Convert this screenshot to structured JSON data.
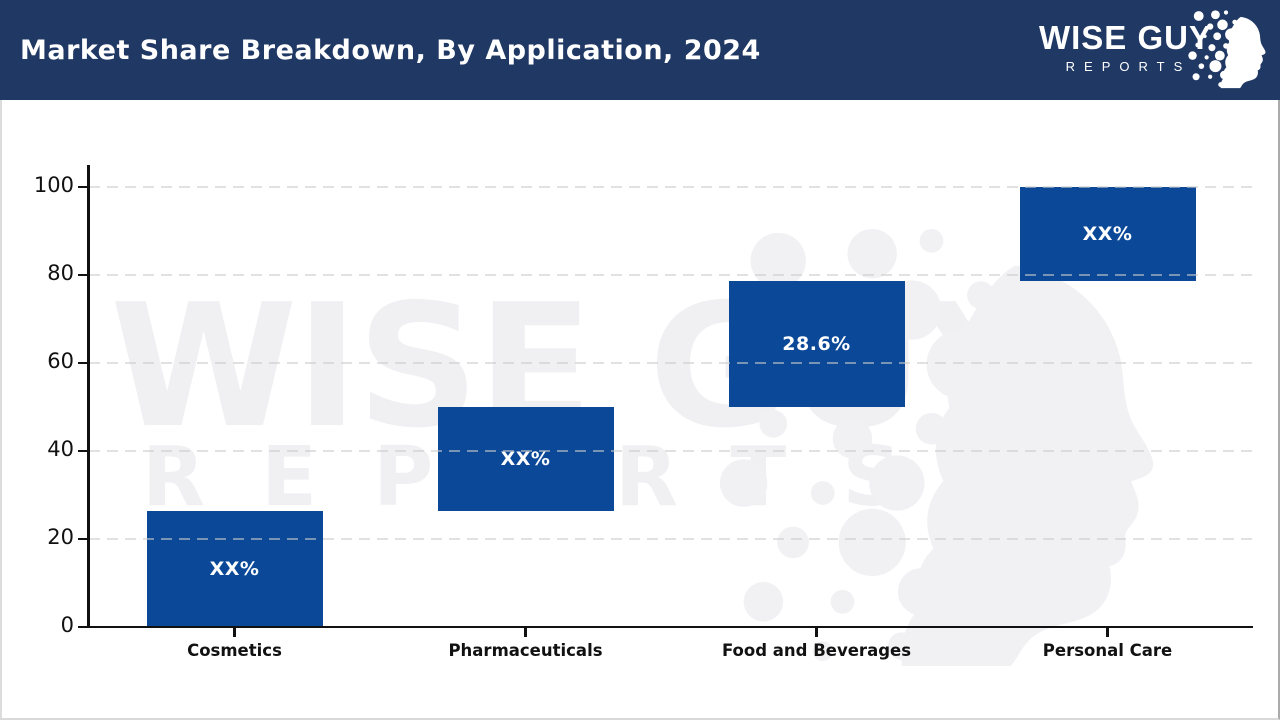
{
  "header": {
    "title": "Market Share Breakdown, By Application, 2024"
  },
  "logo": {
    "name": "WISE GUY",
    "sub": "REPORTS"
  },
  "watermark": {
    "line1": "WISE GUY",
    "line2": "REPORTS"
  },
  "chart_data": {
    "type": "bar",
    "subtype": "floating-waterfall",
    "title": "Market Share Breakdown, By Application, 2024",
    "categories": [
      "Cosmetics",
      "Pharmaceuticals",
      "Food and Beverages",
      "Personal Care"
    ],
    "series": [
      {
        "name": "Market Share (%)",
        "segments": [
          {
            "category": "Cosmetics",
            "start": 0,
            "end": 26.4,
            "label": "XX%"
          },
          {
            "category": "Pharmaceuticals",
            "start": 26.4,
            "end": 50.0,
            "label": "XX%"
          },
          {
            "category": "Food and Beverages",
            "start": 50.0,
            "end": 78.6,
            "label": "28.6%"
          },
          {
            "category": "Personal Care",
            "start": 78.6,
            "end": 100,
            "label": "XX%"
          }
        ]
      }
    ],
    "xlabel": "",
    "ylabel": "",
    "ylim": [
      0,
      100
    ],
    "yticks": [
      0,
      20,
      40,
      60,
      80,
      100
    ],
    "grid": "horizontal-dashed",
    "legend": "none",
    "bar_color": "#0b4898",
    "bar_label_color": "#ffffff"
  },
  "colors": {
    "header_bg": "#203864",
    "bar": "#0b4898",
    "axis": "#111111",
    "grid": "#e2e2e2",
    "watermark": "#f0f0f3"
  }
}
